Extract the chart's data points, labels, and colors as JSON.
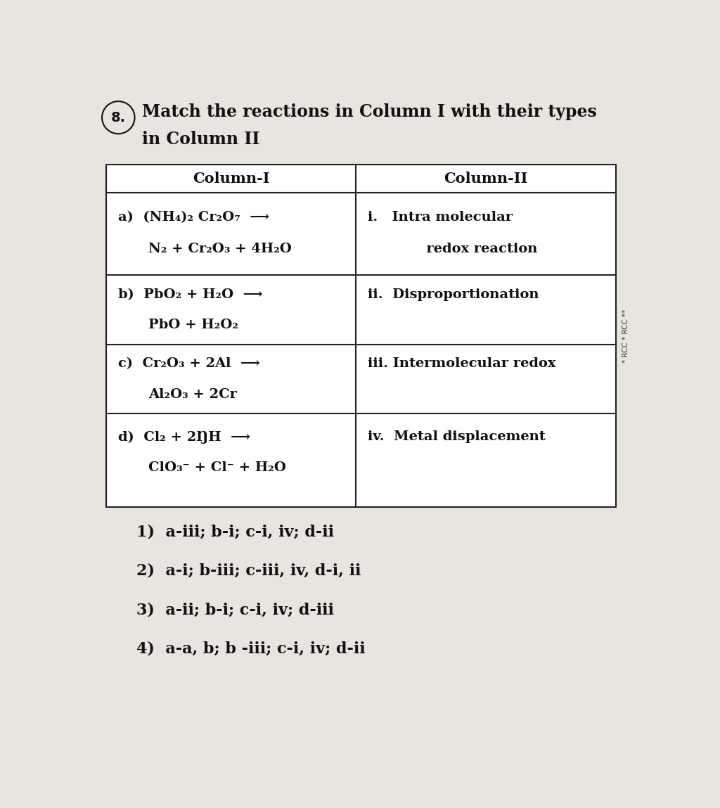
{
  "bg_color": "#e8e4de",
  "table_bg": "#ffffff",
  "text_color": "#111111",
  "border_color": "#222222",
  "q_num": "8.",
  "title_line1": "Match the reactions in Column I with their types",
  "title_line2": "in Column II",
  "header_col1": "Column-I",
  "header_col2": "Column-II",
  "col1_rows": [
    [
      "a)  (NH₄)₂ Cr₂O₇  ⟶",
      "N₂ + Cr₂O₃ + 4H₂O"
    ],
    [
      "b)  PbO₂ + H₂O  ⟶",
      "PbO + H₂O₂"
    ],
    [
      "c)  Cr₂O₃ + 2Al  ⟶",
      "Al₂O₃ + 2Cr"
    ],
    [
      "d)  Cl₂ + 2ŊH  ⟶",
      "ClO₃⁻ + Cl⁻ + H₂O"
    ]
  ],
  "col2_rows": [
    [
      "i.   Intra molecular",
      "      redox reaction"
    ],
    [
      "ii.  Disproportionation",
      ""
    ],
    [
      "iii. Intermolecular redox",
      ""
    ],
    [
      "iv.  Metal displacement",
      ""
    ]
  ],
  "options": [
    "1)  a-iii; b-i; c-i, iv; d-ii",
    "2)  a-i; b-iii; c-iii, iv, d-i, ii",
    "3)  a-ii; b-i; c-i, iv; d-iii",
    "4)  a-a, b; b -iii; c-i, iv; d-ii"
  ],
  "rcc_text": "* RCC * RCC **",
  "title_fontsize": 17,
  "header_fontsize": 15,
  "cell_fontsize": 14,
  "option_fontsize": 16
}
